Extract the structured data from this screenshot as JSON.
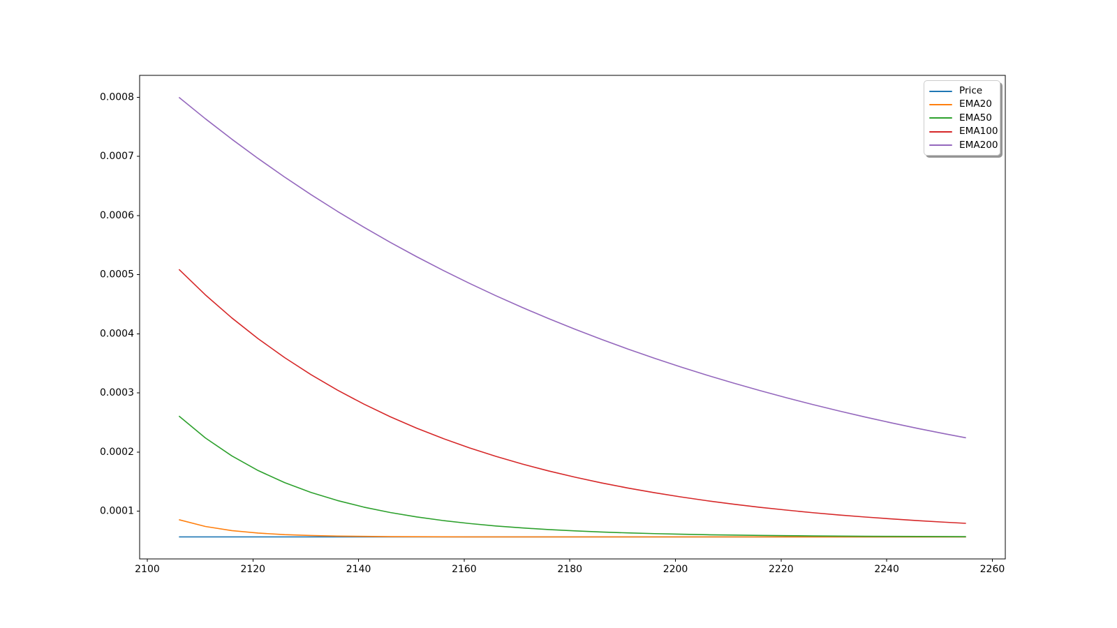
{
  "figure": {
    "background_color": "#ffffff",
    "axes_edge_color": "#000000"
  },
  "chart_data": {
    "type": "line",
    "title": "",
    "xlabel": "",
    "ylabel": "",
    "grid": false,
    "xlim": [
      2098.55,
      2262.45
    ],
    "ylim": [
      1.93e-05,
      0.0008372
    ],
    "xtick_values": [
      2100,
      2120,
      2140,
      2160,
      2180,
      2200,
      2220,
      2240,
      2260
    ],
    "xtick_labels": [
      "2100",
      "2120",
      "2140",
      "2160",
      "2180",
      "2200",
      "2220",
      "2240",
      "2260"
    ],
    "ytick_values": [
      0.0001,
      0.0002,
      0.0003,
      0.0004,
      0.0005,
      0.0006,
      0.0007,
      0.0008
    ],
    "ytick_labels": [
      "0.0001",
      "0.0002",
      "0.0003",
      "0.0004",
      "0.0005",
      "0.0006",
      "0.0007",
      "0.0008"
    ],
    "legend_position": "upper right",
    "x": [
      2106,
      2111,
      2116,
      2121,
      2126,
      2131,
      2136,
      2141,
      2146,
      2151,
      2156,
      2161,
      2166,
      2171,
      2176,
      2181,
      2186,
      2191,
      2196,
      2201,
      2206,
      2211,
      2216,
      2221,
      2226,
      2231,
      2236,
      2241,
      2246,
      2251,
      2255
    ],
    "series": [
      {
        "name": "Price",
        "color": "#1f77b4",
        "values": [
          5.65e-05,
          5.65e-05,
          5.65e-05,
          5.65e-05,
          5.65e-05,
          5.65e-05,
          5.65e-05,
          5.65e-05,
          5.65e-05,
          5.65e-05,
          5.65e-05,
          5.65e-05,
          5.65e-05,
          5.65e-05,
          5.65e-05,
          5.65e-05,
          5.65e-05,
          5.65e-05,
          5.65e-05,
          5.65e-05,
          5.65e-05,
          5.65e-05,
          5.65e-05,
          5.65e-05,
          5.65e-05,
          5.65e-05,
          5.65e-05,
          5.65e-05,
          5.65e-05,
          5.65e-05,
          5.65e-05
        ]
      },
      {
        "name": "EMA20",
        "color": "#ff7f0e",
        "values": [
          8.56e-05,
          7.42e-05,
          6.72e-05,
          6.3e-05,
          6.04e-05,
          5.89e-05,
          5.79e-05,
          5.74e-05,
          5.7e-05,
          5.68e-05,
          5.67e-05,
          5.66e-05,
          5.66e-05,
          5.65e-05,
          5.65e-05,
          5.65e-05,
          5.65e-05,
          5.65e-05,
          5.65e-05,
          5.65e-05,
          5.65e-05,
          5.65e-05,
          5.65e-05,
          5.65e-05,
          5.65e-05,
          5.65e-05,
          5.65e-05,
          5.65e-05,
          5.65e-05,
          5.65e-05,
          5.65e-05
        ]
      },
      {
        "name": "EMA50",
        "color": "#2ca02c",
        "values": [
          0.000261,
          0.0002239,
          0.0001936,
          0.0001687,
          0.0001484,
          0.0001317,
          0.0001181,
          0.0001069,
          9.78e-05,
          9.03e-05,
          8.42e-05,
          7.92e-05,
          7.5e-05,
          7.17e-05,
          6.89e-05,
          6.67e-05,
          6.48e-05,
          6.33e-05,
          6.21e-05,
          6.11e-05,
          6.02e-05,
          5.96e-05,
          5.9e-05,
          5.86e-05,
          5.82e-05,
          5.79e-05,
          5.76e-05,
          5.74e-05,
          5.73e-05,
          5.71e-05,
          5.7e-05
        ]
      },
      {
        "name": "EMA100",
        "color": "#d62728",
        "values": [
          0.000509,
          0.0004659,
          0.000427,
          0.0003917,
          0.0003598,
          0.000331,
          0.0003048,
          0.0002812,
          0.0002598,
          0.0002405,
          0.000223,
          0.0002071,
          0.0001928,
          0.0001798,
          0.0001681,
          0.0001575,
          0.0001479,
          0.0001392,
          0.0001313,
          0.0001242,
          0.0001177,
          0.0001119,
          0.0001066,
          0.0001019,
          9.75e-05,
          9.36e-05,
          9.01e-05,
          8.69e-05,
          8.4e-05,
          8.14e-05,
          7.95e-05
        ]
      },
      {
        "name": "EMA200",
        "color": "#9467bd",
        "values": [
          0.0008,
          0.0007638,
          0.0007293,
          0.0006965,
          0.0006652,
          0.0006355,
          0.0006072,
          0.0005804,
          0.0005548,
          0.0005305,
          0.0005074,
          0.0004854,
          0.0004645,
          0.0004446,
          0.0004257,
          0.0004078,
          0.0003906,
          0.0003743,
          0.0003588,
          0.000344,
          0.00033,
          0.0003167,
          0.000304,
          0.0002919,
          0.0002804,
          0.0002695,
          0.0002591,
          0.0002492,
          0.0002398,
          0.0002309,
          0.0002241
        ]
      }
    ]
  }
}
